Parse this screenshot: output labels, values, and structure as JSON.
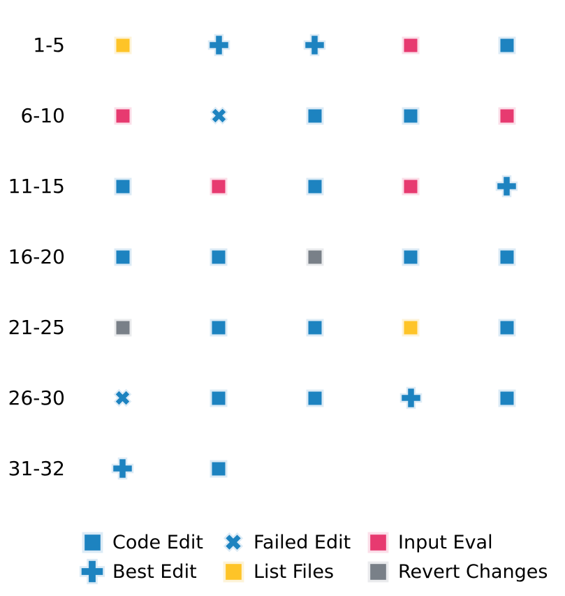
{
  "chart_data": {
    "type": "scatter",
    "title": "",
    "background": "#ffffff",
    "text_color": "#000000",
    "legend_position": "bottom",
    "rows": [
      {
        "label": "1-5",
        "cells": [
          "list_files",
          "best_edit",
          "best_edit",
          "input_eval",
          "code_edit"
        ]
      },
      {
        "label": "6-10",
        "cells": [
          "input_eval",
          "failed_edit",
          "code_edit",
          "code_edit",
          "input_eval"
        ]
      },
      {
        "label": "11-15",
        "cells": [
          "code_edit",
          "input_eval",
          "code_edit",
          "input_eval",
          "best_edit"
        ]
      },
      {
        "label": "16-20",
        "cells": [
          "code_edit",
          "code_edit",
          "revert_changes",
          "code_edit",
          "code_edit"
        ]
      },
      {
        "label": "21-25",
        "cells": [
          "revert_changes",
          "code_edit",
          "code_edit",
          "list_files",
          "code_edit"
        ]
      },
      {
        "label": "26-30",
        "cells": [
          "failed_edit",
          "code_edit",
          "code_edit",
          "best_edit",
          "code_edit"
        ]
      },
      {
        "label": "31-32",
        "cells": [
          "best_edit",
          "code_edit"
        ]
      }
    ],
    "series_types": {
      "code_edit": {
        "label": "Code Edit",
        "marker": "square",
        "fill": "#1d83c0",
        "edge": "#dcebf6"
      },
      "failed_edit": {
        "label": "Failed Edit",
        "marker": "x",
        "fill": "#1d83c0",
        "edge": "#dcebf6"
      },
      "input_eval": {
        "label": "Input Eval",
        "marker": "square",
        "fill": "#e73a70",
        "edge": "#fbdfe9"
      },
      "best_edit": {
        "label": "Best Edit",
        "marker": "plus",
        "fill": "#1d83c0",
        "edge": "#dcebf6"
      },
      "list_files": {
        "label": "List Files",
        "marker": "square",
        "fill": "#fec428",
        "edge": "#fdf3d8"
      },
      "revert_changes": {
        "label": "Revert Changes",
        "marker": "square",
        "fill": "#798088",
        "edge": "#eaebed"
      }
    },
    "legend_order": [
      "code_edit",
      "failed_edit",
      "input_eval",
      "best_edit",
      "list_files",
      "revert_changes"
    ],
    "columns_per_row": 5
  }
}
